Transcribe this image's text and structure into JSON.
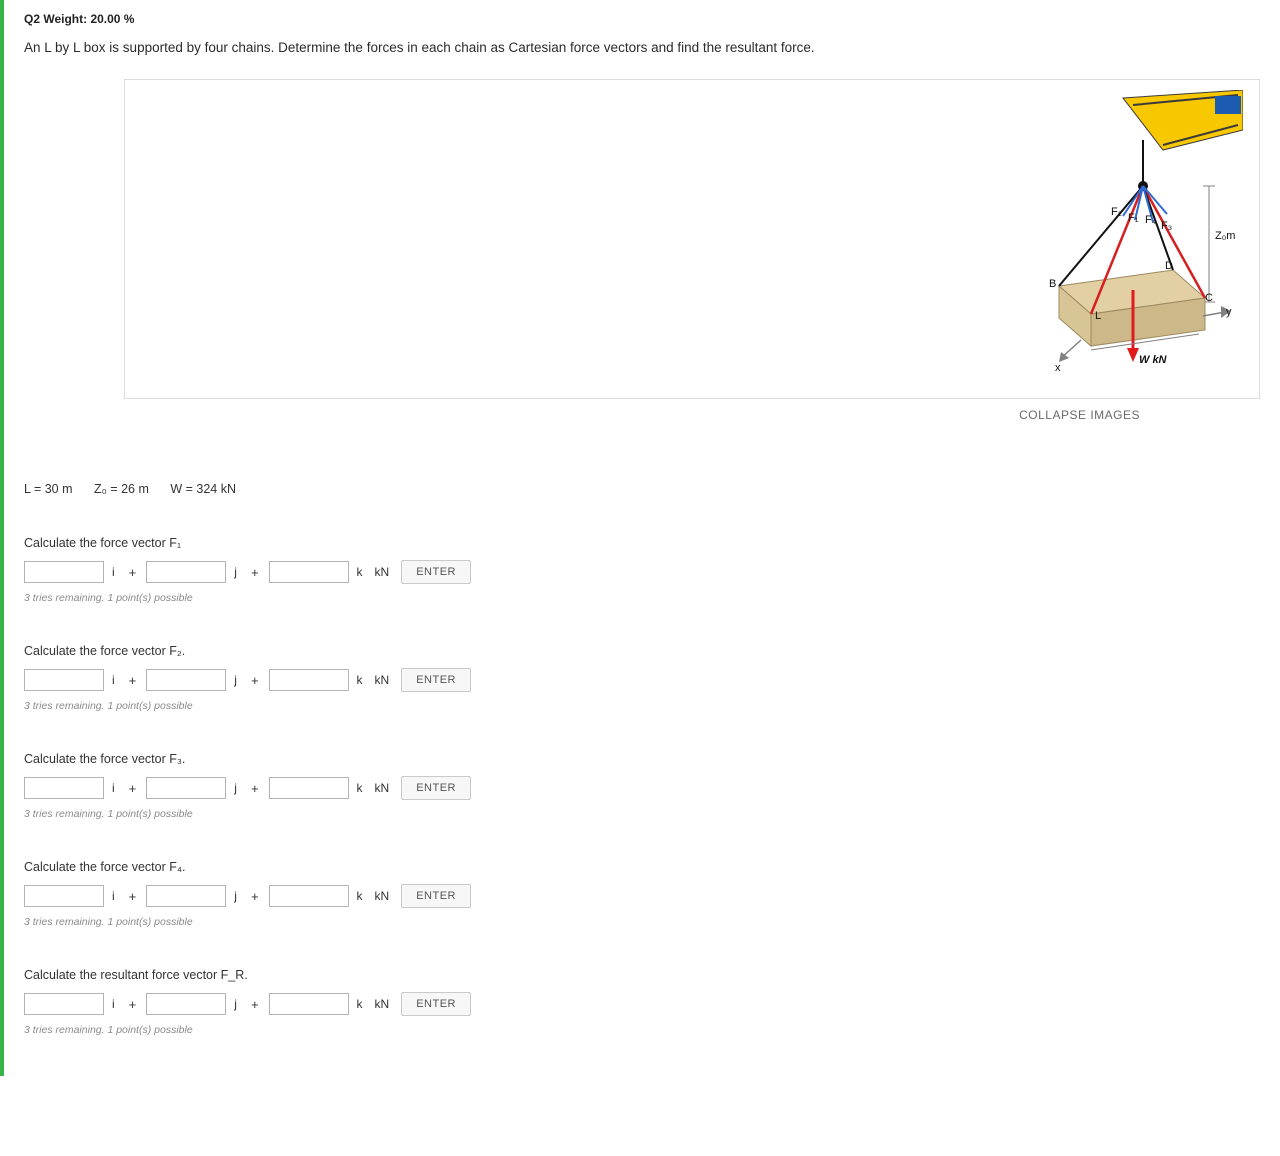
{
  "header": {
    "weight_label": "Q2 Weight: 20.00 %",
    "prompt": "An L by L box is supported by four chains. Determine the forces in each chain as Cartesian force vectors and find the resultant force."
  },
  "figure": {
    "collapse_label": "COLLAPSE IMAGES",
    "labels": {
      "F1": "F₁",
      "F2": "F₂",
      "F3": "F₃",
      "F4": "F₄",
      "B": "B",
      "C": "C",
      "D": "D",
      "L": "L",
      "Zom": "Z₀m",
      "WkN": "W kN",
      "x": "x",
      "y": "y"
    },
    "colors": {
      "crane": "#f7c700",
      "crane_dark": "#3a3a3a",
      "box_top": "#e2cfa4",
      "box_side": "#cdb88a",
      "box_front": "#d8c596",
      "chain_red": "#d62020",
      "chain_black": "#111111",
      "arrow_red": "#e11b1b",
      "arrow_gray": "#808080",
      "marker": "#2e6bd6"
    }
  },
  "params": {
    "L": "L = 30 m",
    "Z0": "Z₀ = 26 m",
    "W": "W = 324 kN"
  },
  "questions": [
    {
      "label": "Calculate the force vector F₁",
      "tries": "3 tries remaining. 1 point(s) possible"
    },
    {
      "label": "Calculate the force vector F₂.",
      "tries": "3 tries remaining. 1 point(s) possible"
    },
    {
      "label": "Calculate the force vector F₃.",
      "tries": "3 tries remaining. 1 point(s) possible"
    },
    {
      "label": "Calculate the force vector F₄.",
      "tries": "3 tries remaining. 1 point(s) possible"
    },
    {
      "label": "Calculate the resultant force vector F_R.",
      "tries": "3 tries remaining. 1 point(s) possible"
    }
  ],
  "input": {
    "i_label": "i",
    "j_label": "j",
    "k_label": "k",
    "plus": "+",
    "kn": "kN",
    "enter": "ENTER"
  }
}
